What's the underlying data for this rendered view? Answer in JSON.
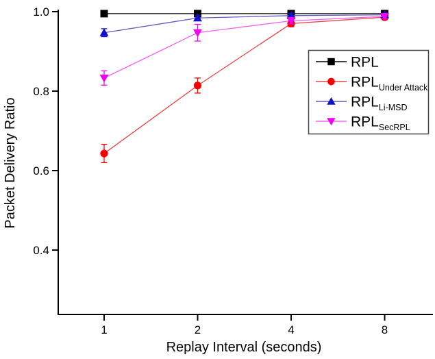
{
  "figure": {
    "background_color": "#ffffff",
    "axis_color": "#000000"
  },
  "chart_data": {
    "type": "line",
    "title": "",
    "xlabel": "Replay Interval (seconds)",
    "ylabel": "Packet Delivery Ratio",
    "x_scale": "log2",
    "grid": false,
    "legend_position": "upper-right-inset",
    "legend_border_color": "#444444",
    "x": [
      1,
      2,
      4,
      8
    ],
    "x_tick_labels": [
      "1",
      "2",
      "4",
      "8"
    ],
    "y_ticks": [
      1.0,
      0.8,
      0.6,
      0.4
    ],
    "y_tick_labels": [
      "1.0",
      "0.8",
      "0.6",
      "0.4"
    ],
    "y_axis_visible_range": [
      0.24,
      1.0
    ],
    "series": [
      {
        "name": "RPL",
        "label_main": "RPL",
        "label_sub": "",
        "marker": "square",
        "marker_color": "#000000",
        "line_color": "#000000",
        "values": [
          0.995,
          0.995,
          0.995,
          0.995
        ],
        "errors": [
          0.004,
          0.004,
          0.004,
          0.005
        ]
      },
      {
        "name": "RPL Under Attack",
        "label_main": "RPL",
        "label_sub": "Under Attack",
        "marker": "circle",
        "marker_color": "#f40000",
        "line_color": "#e44545",
        "values": [
          0.643,
          0.814,
          0.97,
          0.986
        ],
        "errors": [
          0.023,
          0.019,
          0.008,
          0.006
        ]
      },
      {
        "name": "RPL Li-MSD",
        "label_main": "RPL",
        "label_sub": "Li-MSD",
        "marker": "triangle-up",
        "marker_color": "#1111cc",
        "line_color": "#5b5bc0",
        "values": [
          0.947,
          0.984,
          0.99,
          0.992
        ],
        "errors": [
          0.01,
          0.007,
          0.006,
          0.005
        ]
      },
      {
        "name": "RPL SecRPL",
        "label_main": "RPL",
        "label_sub": "SecRPL",
        "marker": "triangle-down",
        "marker_color": "#f000f0",
        "line_color": "#ef62ef",
        "values": [
          0.833,
          0.947,
          0.977,
          0.988
        ],
        "errors": [
          0.018,
          0.021,
          0.008,
          0.006
        ]
      }
    ]
  }
}
